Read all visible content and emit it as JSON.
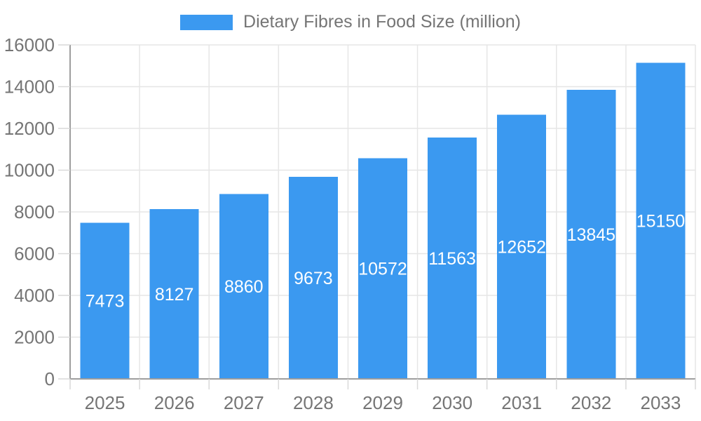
{
  "chart_data": {
    "type": "bar",
    "title": "Dietary Fibres in Food Size (million)",
    "legend_entries": [
      "Dietary Fibres in Food Size (million)"
    ],
    "legend_position": "top-center",
    "categories": [
      "2025",
      "2026",
      "2027",
      "2028",
      "2029",
      "2030",
      "2031",
      "2032",
      "2033"
    ],
    "series": [
      {
        "name": "Dietary Fibres in Food Size (million)",
        "values": [
          7473,
          8127,
          8860,
          9673,
          10572,
          11563,
          12652,
          13845,
          15150
        ]
      }
    ],
    "bar_value_labels_shown": true,
    "xlabel": "",
    "ylabel": "",
    "ylim": [
      0,
      16000
    ],
    "yticks": [
      0,
      2000,
      4000,
      6000,
      8000,
      10000,
      12000,
      14000,
      16000
    ],
    "grid": true,
    "colors": {
      "bar": "#3B99F0",
      "bar_label_text": "#FFFFFF",
      "axis_text": "#757575",
      "axis_line": "#9E9E9E",
      "tick_line": "#D9D9D9",
      "grid_line": "#E6E6E6",
      "background": "#FFFFFF"
    }
  }
}
